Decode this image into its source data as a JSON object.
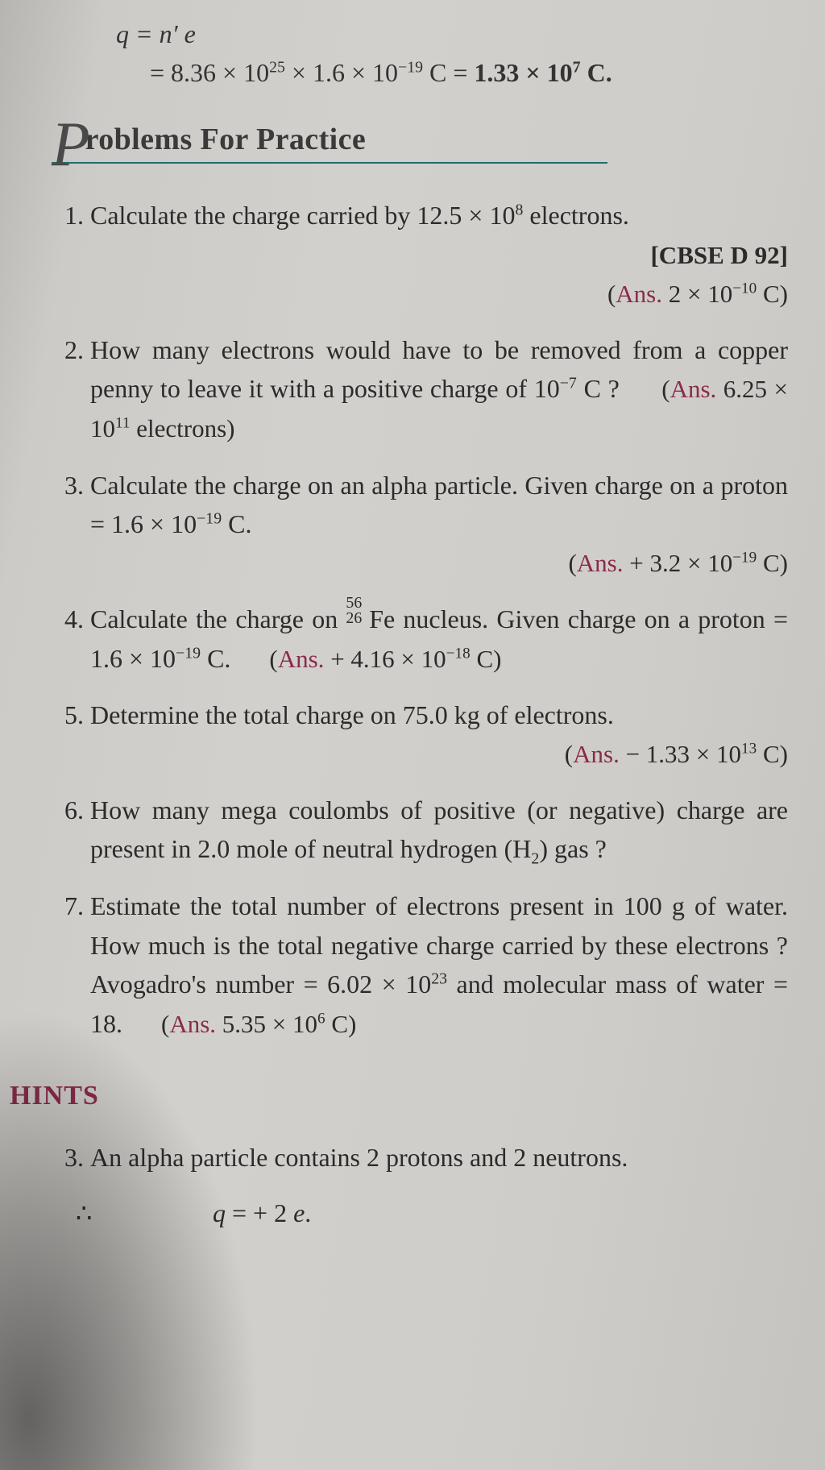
{
  "colors": {
    "page_bg": "#cdcbc7",
    "text": "#2a2a2a",
    "accent_rule": "#1e6e6a",
    "ans_color": "#8a2a4a"
  },
  "typography": {
    "body_fontsize_pt": 24,
    "section_title_fontsize_pt": 29,
    "dropcap_fontsize_pt": 58,
    "font_family": "Georgia / Times-like serif"
  },
  "equation": {
    "line1": "q = n′ e",
    "line2": "= 8.36 × 10²⁵ × 1.6 × 10⁻¹⁹ C = 1.33 × 10⁷ C."
  },
  "section": {
    "dropcap": "P",
    "title": "roblems For Practice"
  },
  "problems": [
    {
      "text": "Calculate the charge carried by 12.5 × 10⁸ electrons.",
      "tag": "[CBSE D 92]",
      "answer": "2 × 10⁻¹⁰ C",
      "answer_placement": "right"
    },
    {
      "text": "How many electrons would have to be removed from a copper penny to leave it with a positive charge of 10⁻⁷ C ?",
      "answer": "6.25 × 10¹¹ electrons",
      "answer_placement": "inline"
    },
    {
      "text": "Calculate the charge on an alpha particle. Given charge on a proton = 1.6 × 10⁻¹⁹ C.",
      "answer": "+ 3.2 × 10⁻¹⁹ C",
      "answer_placement": "right"
    },
    {
      "text_pre": "Calculate the charge on ",
      "isotope": {
        "A": "56",
        "Z": "26",
        "sym": "Fe"
      },
      "text_post": " nucleus. Given charge on a proton = 1.6 × 10⁻¹⁹ C.",
      "answer": "+ 4.16 × 10⁻¹⁸ C",
      "answer_placement": "inline"
    },
    {
      "text": "Determine the total charge on 75.0 kg of electrons.",
      "answer": "− 1.33 × 10¹³ C",
      "answer_placement": "right"
    },
    {
      "text": "How many mega coulombs of positive (or negative) charge are present in 2.0 mole of neutral hydrogen (H₂) gas ?"
    },
    {
      "text": "Estimate the total number of electrons present in 100 g of water. How much is the total negative charge carried by these electrons ? Avogadro's number = 6.02 × 10²³ and molecular mass of water = 18.",
      "answer": "5.35 × 10⁶ C",
      "answer_placement": "inline"
    }
  ],
  "hints": {
    "title": "HINTS",
    "items": [
      {
        "start": 3,
        "text": "An alpha particle contains 2 protons and 2 neutrons.",
        "therefore": "∴",
        "eq": "q = + 2 e."
      }
    ]
  },
  "labels": {
    "ans_prefix": "Ans."
  }
}
